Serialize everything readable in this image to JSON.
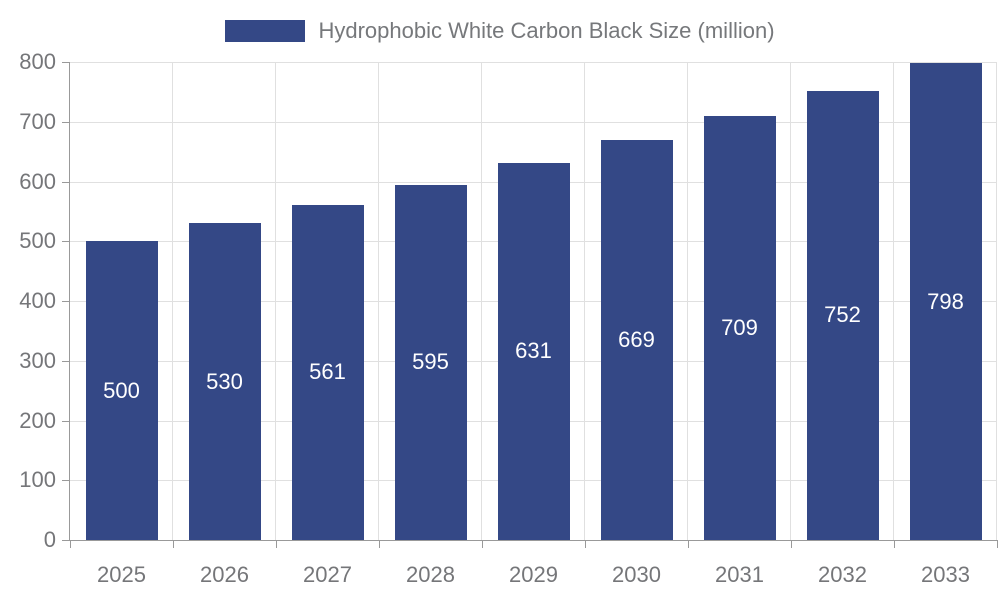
{
  "chart_data": {
    "type": "bar",
    "title": "",
    "legend": "Hydrophobic White Carbon Black Size (million)",
    "categories": [
      "2025",
      "2026",
      "2027",
      "2028",
      "2029",
      "2030",
      "2031",
      "2032",
      "2033"
    ],
    "values": [
      500,
      530,
      561,
      595,
      631,
      669,
      709,
      752,
      798
    ],
    "xlabel": "",
    "ylabel": "",
    "ylim": [
      0,
      800
    ],
    "yticks": [
      0,
      100,
      200,
      300,
      400,
      500,
      600,
      700,
      800
    ],
    "grid": true,
    "legend_position": "top-center",
    "value_labels_position": "inside-center",
    "colors": {
      "bar": "#344886",
      "grid": "#e0e0e0",
      "axis": "#999999",
      "tick_label": "#757679",
      "legend_text": "#76787b",
      "value_label": "#ffffff",
      "background": "#ffffff"
    }
  }
}
